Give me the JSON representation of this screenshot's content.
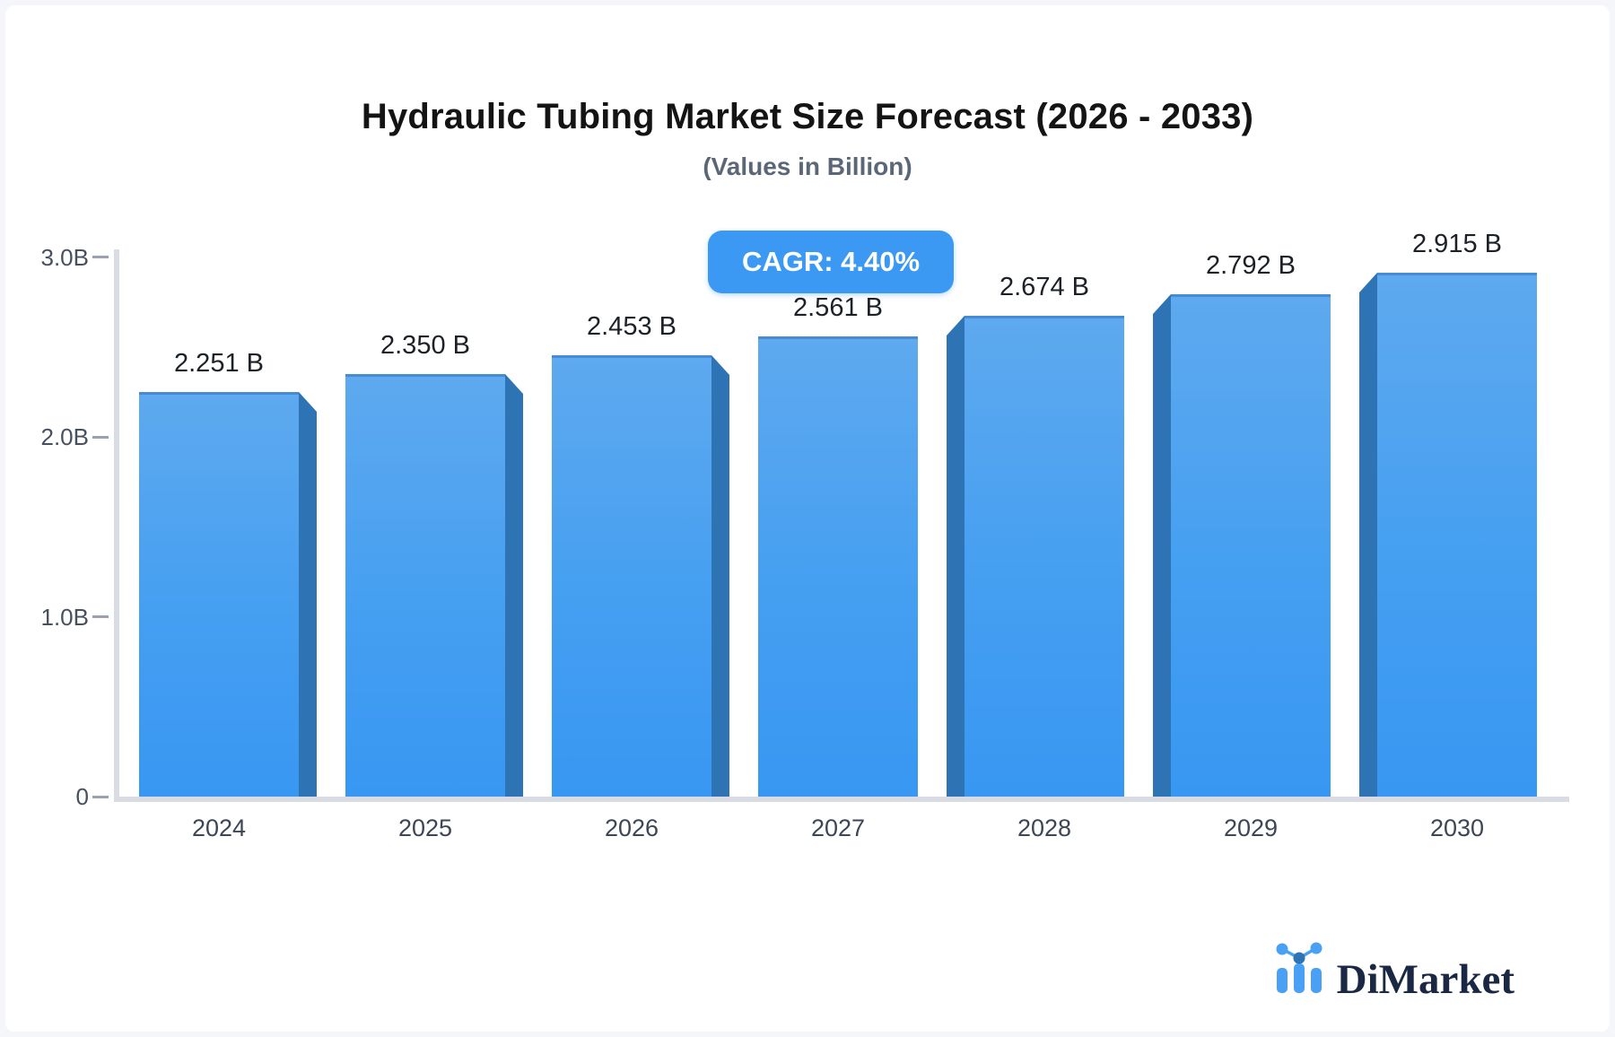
{
  "page": {
    "background": "#f4f6f9",
    "card_background": "#ffffff"
  },
  "header": {
    "title": "Hydraulic Tubing Market Size Forecast (2026 - 2033)",
    "subtitle": "(Values in Billion)"
  },
  "cagr_badge": {
    "label": "CAGR: 4.40%",
    "background": "#3b99f3",
    "text_color": "#ffffff"
  },
  "chart_data": {
    "type": "bar",
    "title": "Hydraulic Tubing Market Size Forecast (2026 - 2033)",
    "subtitle": "(Values in Billion)",
    "unit": "Billion",
    "categories": [
      "2024",
      "2025",
      "2026",
      "2027",
      "2028",
      "2029",
      "2030"
    ],
    "values": [
      2.251,
      2.35,
      2.453,
      2.561,
      2.674,
      2.792,
      2.915
    ],
    "value_labels": [
      "2.251 B",
      "2.350 B",
      "2.453 B",
      "2.561 B",
      "2.674 B",
      "2.792 B",
      "2.915 B"
    ],
    "ylim": [
      0,
      3
    ],
    "yticks": [
      0,
      1,
      2,
      3
    ],
    "ytick_labels": [
      "0",
      "1.0B",
      "2.0B",
      "3.0B"
    ],
    "grid": false,
    "legend": false,
    "annotations": [
      "CAGR: 4.40%"
    ],
    "style": "3d-extruded-bars, vanishing point at center bar",
    "colors": {
      "bar_face_top": "#5ea9ef",
      "bar_face_bottom": "#3897f2",
      "bar_side": "#2e74b5",
      "bar_top_edge": "#478bd3",
      "axis": "#d9dde3",
      "tick": "#9aa3ad",
      "tick_text": "#46505e",
      "value_text": "#1c2128",
      "category_text": "#3c4654"
    }
  },
  "logo": {
    "text": "DiMarket",
    "icon": "mini-bar-chart-icon",
    "icon_color": "#4aa0f5",
    "icon_accent_color": "#2e74b5",
    "text_color": "#1b2844"
  }
}
